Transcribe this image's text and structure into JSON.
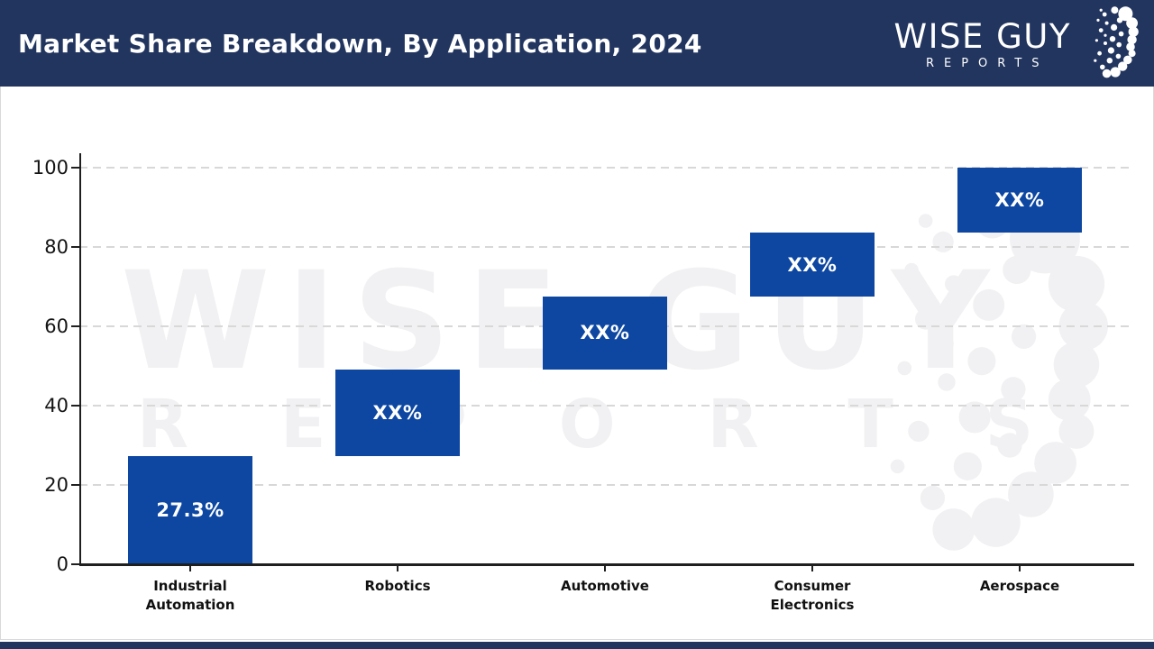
{
  "header": {
    "title": "Market Share Breakdown, By Application, 2024",
    "bg_color": "#22355f",
    "logo": {
      "wordmark": "WISE GUY",
      "subtext": "REPORTS"
    }
  },
  "watermark": {
    "wordmark": "WISE GUY",
    "subtext": "REPORTS"
  },
  "chart_data": {
    "type": "bar",
    "subtype": "waterfall",
    "title": "Market Share Breakdown, By Application, 2024",
    "categories": [
      "Industrial Automation",
      "Robotics",
      "Automotive",
      "Consumer Electronics",
      "Aerospace"
    ],
    "segments": [
      {
        "category": "Industrial Automation",
        "start": 0,
        "end": 27.3,
        "label": "27.3%"
      },
      {
        "category": "Robotics",
        "start": 27.3,
        "end": 49.1,
        "label": "XX%"
      },
      {
        "category": "Automotive",
        "start": 49.1,
        "end": 67.5,
        "label": "XX%"
      },
      {
        "category": "Consumer Electronics",
        "start": 67.5,
        "end": 83.6,
        "label": "XX%"
      },
      {
        "category": "Aerospace",
        "start": 83.6,
        "end": 100,
        "label": "XX%"
      }
    ],
    "y_ticks": [
      0,
      20,
      40,
      60,
      80,
      100
    ],
    "ylim": [
      0,
      100
    ],
    "xlabel": "",
    "ylabel": "",
    "grid": "horizontal-dashed",
    "legend": "none",
    "bar_color": "#0d47a1",
    "bar_label_color": "#ffffff"
  }
}
